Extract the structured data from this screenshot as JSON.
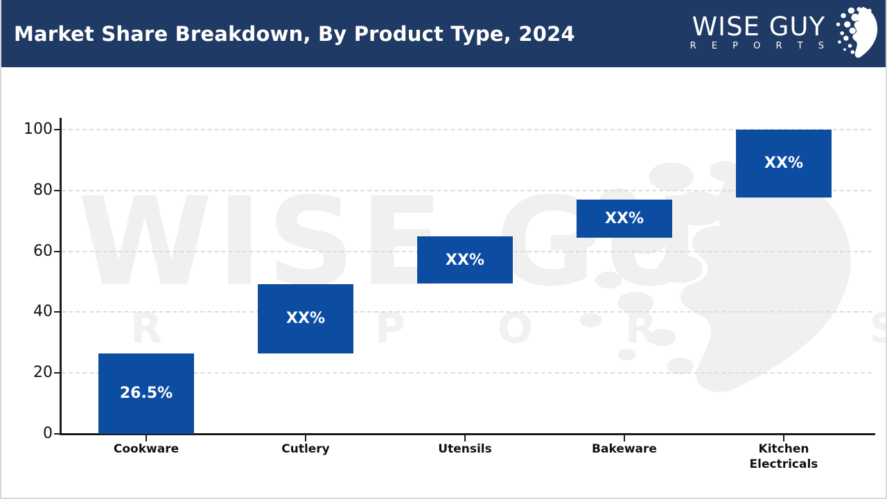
{
  "header": {
    "title": "Market Share Breakdown, By Product Type, 2024",
    "logo_line1": "WISE GUY",
    "logo_line2": "R E P O R T S"
  },
  "watermark": {
    "line1": "WISE GUY",
    "line2": "R E P O R T S"
  },
  "colors": {
    "header_bg": "#1f3a64",
    "bar": "#0c4da2",
    "axis": "#1a1a1a",
    "gridline": "#dcdcdc",
    "bar_label": "#ffffff",
    "watermark": "#f0f0f0"
  },
  "chart_data": {
    "type": "bar",
    "subtype": "waterfall-floating-bars",
    "title": "Market Share Breakdown, By Product Type, 2024",
    "categories": [
      "Cookware",
      "Cutlery",
      "Utensils",
      "Bakeware",
      "Kitchen Electricals"
    ],
    "segments": [
      {
        "category": "Cookware",
        "start": 0,
        "end": 26.5,
        "label": "26.5%"
      },
      {
        "category": "Cutlery",
        "start": 26.5,
        "end": 49.2,
        "label": "XX%"
      },
      {
        "category": "Utensils",
        "start": 49.4,
        "end": 64.9,
        "label": "XX%"
      },
      {
        "category": "Bakeware",
        "start": 64.5,
        "end": 77.0,
        "label": "XX%"
      },
      {
        "category": "Kitchen Electricals",
        "start": 77.7,
        "end": 100,
        "label": "XX%"
      }
    ],
    "xlabel": "",
    "ylabel": "",
    "ylim": [
      0,
      100
    ],
    "yticks": [
      0,
      20,
      40,
      60,
      80,
      100
    ],
    "grid": "horizontal dashed",
    "legend": "none"
  }
}
